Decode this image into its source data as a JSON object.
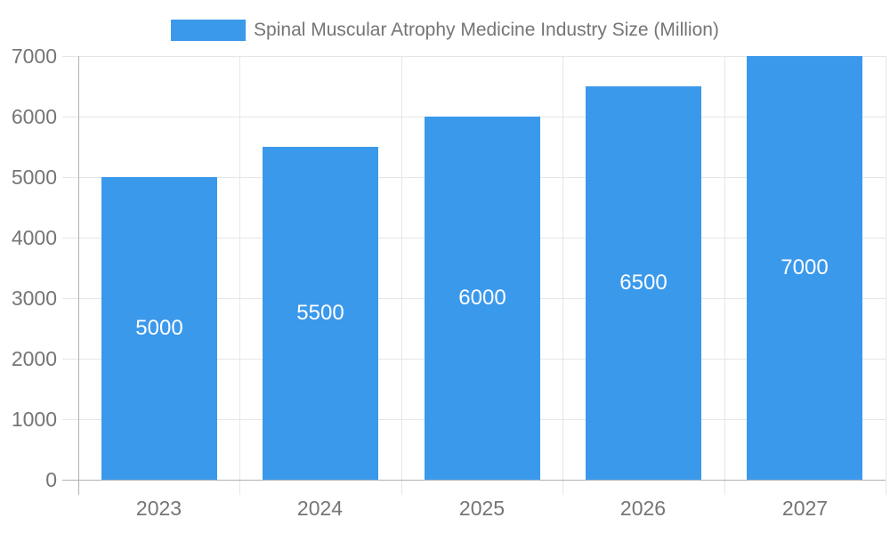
{
  "legend": {
    "label": "Spinal Muscular Atrophy Medicine Industry Size (Million)"
  },
  "chart_data": {
    "type": "bar",
    "categories": [
      "2023",
      "2024",
      "2025",
      "2026",
      "2027"
    ],
    "values": [
      5000,
      5500,
      6000,
      6500,
      7000
    ],
    "title": "Spinal Muscular Atrophy Medicine Industry Size (Million)",
    "xlabel": "",
    "ylabel": "",
    "ylim": [
      0,
      7000
    ],
    "ytick_step": 1000,
    "ytick_labels": [
      "0",
      "1000",
      "2000",
      "3000",
      "4000",
      "5000",
      "6000",
      "7000"
    ],
    "grid": true,
    "legend_position": "top",
    "colors": {
      "bar": "#3B99EC",
      "bar_label": "#FFFFFF",
      "axis_text": "#757575",
      "grid_line": "#E6E6E6",
      "axis_line": "#B1B1B1"
    }
  }
}
